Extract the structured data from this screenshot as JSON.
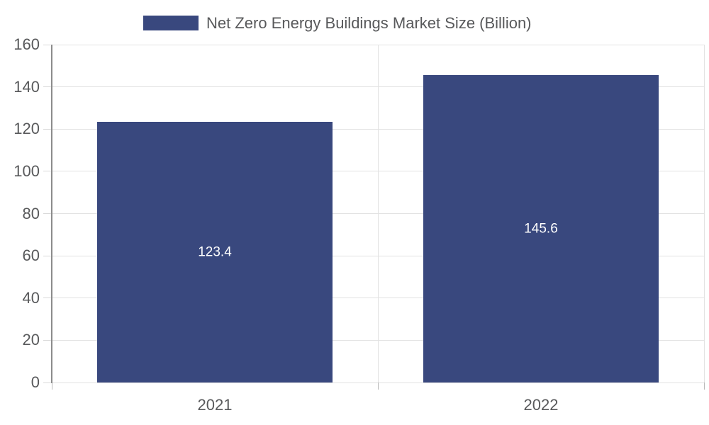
{
  "chart_data": {
    "type": "bar",
    "title": "",
    "categories": [
      "2021",
      "2022"
    ],
    "series": [
      {
        "name": "Net Zero Energy Buildings Market Size (Billion)",
        "values": [
          123.4,
          145.6
        ]
      }
    ],
    "value_labels": [
      "123.4",
      "145.6"
    ],
    "xlabel": "",
    "ylabel": "",
    "ylim": [
      0,
      160
    ],
    "ytick_step": 20,
    "ytick_labels": [
      "0",
      "20",
      "40",
      "60",
      "80",
      "100",
      "120",
      "140",
      "160"
    ],
    "grid": true,
    "legend_position": "top-center"
  },
  "colors": {
    "bar": "#39487E",
    "tick_text": "#58595B",
    "value_text": "#FFFFFF",
    "gridline": "#E2E2E2",
    "axis_line": "#8C8C8C",
    "x_tick": "#B9B9B9",
    "y_tick": "#D9D9D9"
  }
}
